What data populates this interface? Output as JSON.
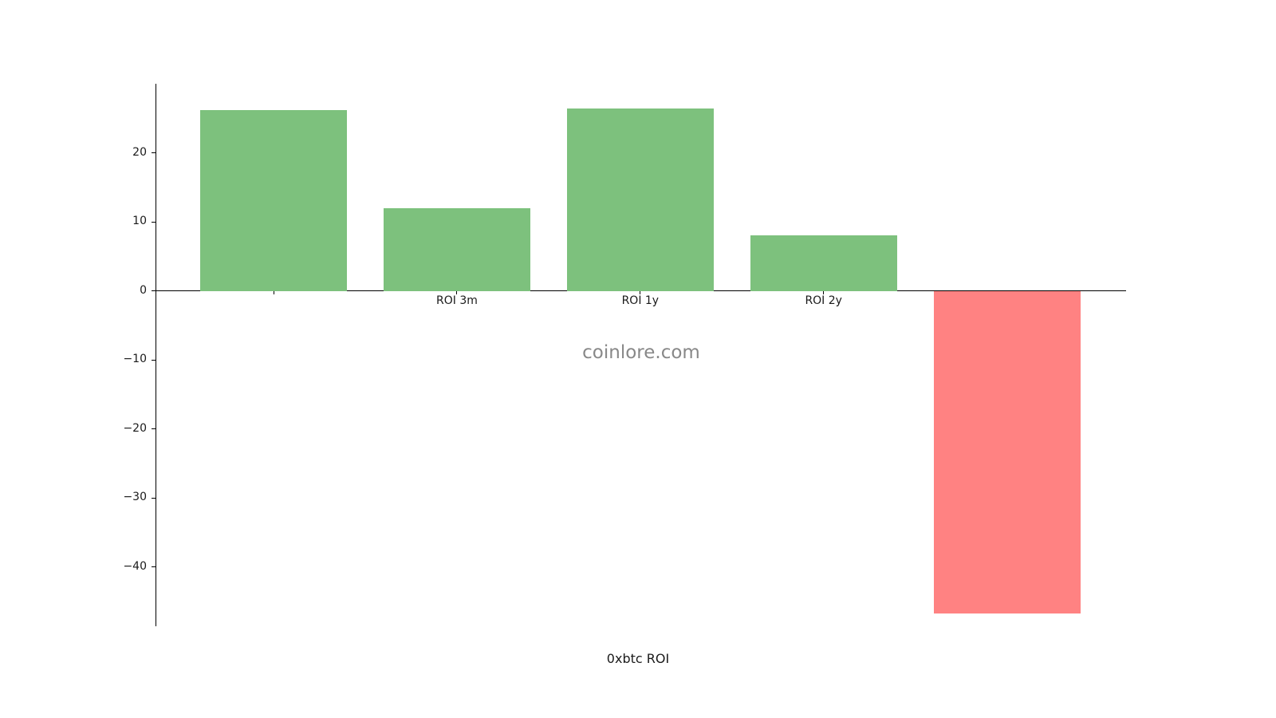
{
  "chart_data": {
    "type": "bar",
    "title": "0xbtc ROI",
    "watermark": "coinlore.com",
    "categories": [
      "",
      "ROI 3m",
      "ROI 1y",
      "ROI 2y",
      ""
    ],
    "values": [
      26.2,
      12,
      26.4,
      8,
      -46.8
    ],
    "series": [
      {
        "name": "0xbtc ROI %",
        "values": [
          26.2,
          12,
          26.4,
          8,
          -46.8
        ]
      }
    ],
    "y_ticks": [
      {
        "value": 20,
        "label": "20"
      },
      {
        "value": 10,
        "label": "10"
      },
      {
        "value": 0,
        "label": "0"
      },
      {
        "value": -10,
        "label": "−10"
      },
      {
        "value": -20,
        "label": "−20"
      },
      {
        "value": -30,
        "label": "−30"
      },
      {
        "value": -40,
        "label": "−40"
      }
    ],
    "x_ticks_visible": [
      0,
      1,
      2,
      3
    ],
    "xlim": [
      -0.64,
      4.65
    ],
    "ylim": [
      -48.6,
      30
    ],
    "bar_width": 0.8,
    "grid": false,
    "legend": false,
    "colors": {
      "positive": "#7dc17d",
      "negative": "#ff8282",
      "axis": "#000000",
      "text": "#1a1a1a",
      "watermark": "#888888",
      "background": "#ffffff"
    }
  }
}
